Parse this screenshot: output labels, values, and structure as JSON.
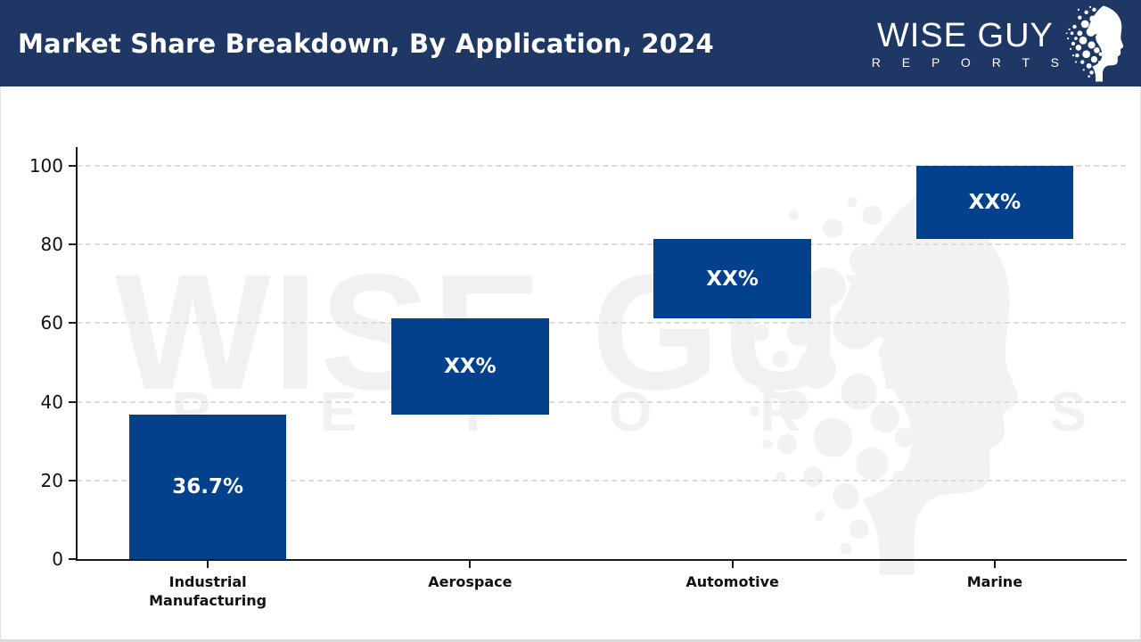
{
  "header": {
    "title": "Market Share Breakdown, By Application, 2024",
    "background_color": "#1e3765",
    "brand": {
      "name": "WISE GUY",
      "subtitle": "R E P O R T S"
    }
  },
  "watermark": {
    "line1": "WISE GUY",
    "line2": "R E P O R T S"
  },
  "chart_data": {
    "type": "bar",
    "subtype": "waterfall",
    "title": "Market Share Breakdown, By Application, 2024",
    "xlabel": "",
    "ylabel": "",
    "categories": [
      "Industrial\nManufacturing",
      "Aerospace",
      "Automotive",
      "Marine"
    ],
    "segments": [
      {
        "category": "Industrial\nManufacturing",
        "start": 0,
        "end": 36.7,
        "label": "36.7%"
      },
      {
        "category": "Aerospace",
        "start": 36.7,
        "end": 61.2,
        "label": "XX%"
      },
      {
        "category": "Automotive",
        "start": 61.2,
        "end": 81.4,
        "label": "XX%"
      },
      {
        "category": "Marine",
        "start": 81.4,
        "end": 100,
        "label": "XX%"
      }
    ],
    "ylim": [
      0,
      100
    ],
    "yticks": [
      0,
      20,
      40,
      60,
      80,
      100
    ],
    "grid": "horizontal-dashed",
    "legend": "none",
    "bar_color": "#04418c",
    "bar_label_color": "#ffffff",
    "axis_color": "#1a1a1a",
    "grid_color": "#dcdcdc"
  }
}
